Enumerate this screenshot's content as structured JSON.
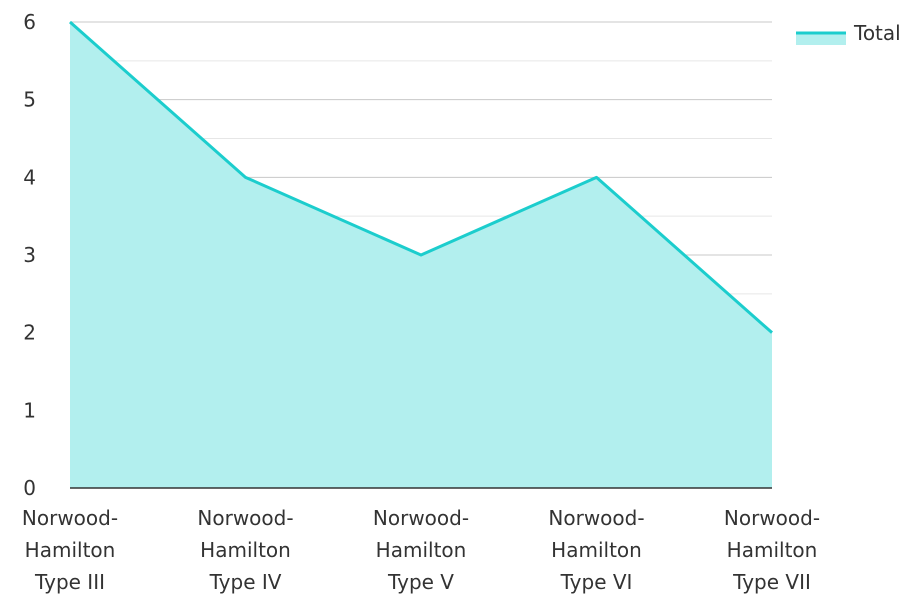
{
  "chart_data": {
    "type": "area",
    "categories": [
      [
        "Norwood-",
        "Hamilton",
        "Type III"
      ],
      [
        "Norwood-",
        "Hamilton",
        "Type IV"
      ],
      [
        "Norwood-",
        "Hamilton",
        "Type V"
      ],
      [
        "Norwood-",
        "Hamilton",
        "Type VI"
      ],
      [
        "Norwood-",
        "Hamilton",
        "Type VII"
      ]
    ],
    "series": [
      {
        "name": "Total",
        "values": [
          6,
          4,
          3,
          4,
          2
        ],
        "color": "#1ccdcd",
        "fill": "#b2efee"
      }
    ],
    "y_ticks": [
      "0",
      "1",
      "2",
      "3",
      "4",
      "5",
      "6"
    ],
    "ylim": [
      0,
      6
    ],
    "grid": true,
    "legend": {
      "position": "top-right",
      "label": "Total"
    }
  }
}
